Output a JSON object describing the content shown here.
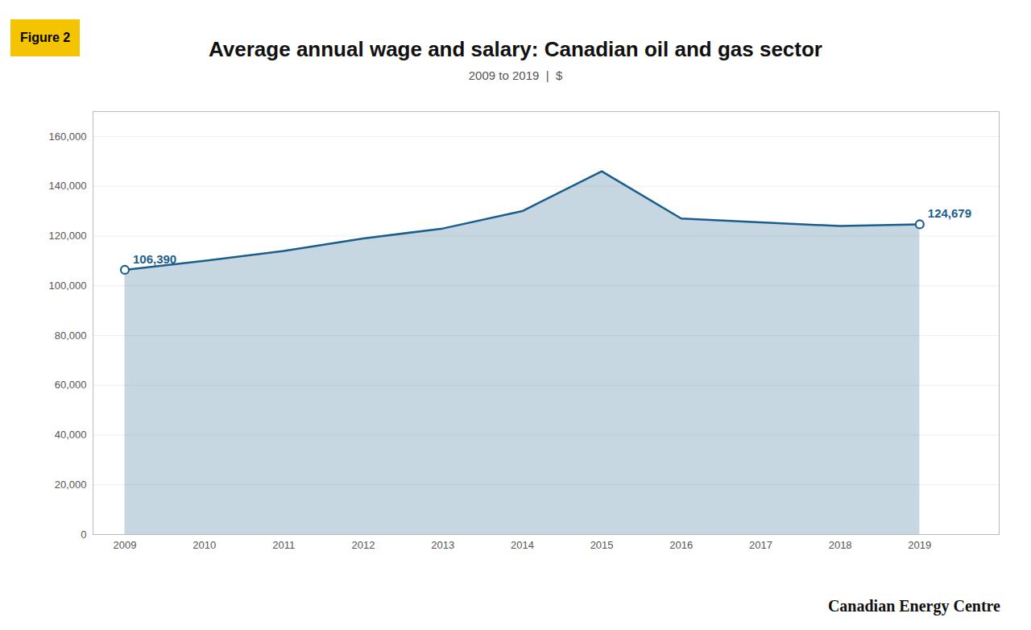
{
  "chart_data": {
    "type": "area",
    "title": "Average annual wage and salary: Canadian oil and gas sector",
    "subtitle": "2009 to 2019  |  $",
    "figure_label": "Figure 2",
    "footer": "Canadian Energy Centre",
    "x": [
      2009,
      2010,
      2011,
      2012,
      2013,
      2014,
      2015,
      2016,
      2017,
      2018,
      2019
    ],
    "values": [
      106390,
      110000,
      114000,
      119000,
      123000,
      130000,
      146000,
      127000,
      125500,
      124000,
      124679
    ],
    "color": "#1b5e8c",
    "marker": "circle",
    "annotations": [
      {
        "x": 2009,
        "y": 106390,
        "text": "106,390"
      },
      {
        "x": 2019,
        "y": 124679,
        "text": "124,679"
      }
    ],
    "xlim": [
      2008.6,
      2020.0
    ],
    "xticks": [
      2009,
      2010,
      2011,
      2012,
      2013,
      2014,
      2015,
      2016,
      2017,
      2018,
      2019
    ],
    "ylim": [
      0,
      170000
    ],
    "yticks": [
      0,
      {
        "value": 20000,
        "label": "20,000"
      },
      {
        "value": 40000,
        "label": "40,000"
      },
      {
        "value": 60000,
        "label": "60,000"
      },
      {
        "value": 80000,
        "label": "80,000"
      },
      {
        "value": 100000,
        "label": "100,000"
      },
      {
        "value": 120000,
        "label": "120,000"
      },
      {
        "value": 140000,
        "label": "140,000"
      },
      {
        "value": 160000,
        "label": "160,000"
      }
    ],
    "grid": true
  }
}
